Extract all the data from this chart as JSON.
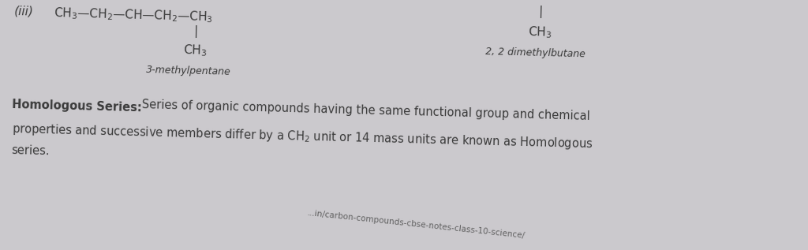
{
  "bg_color": "#cbc9cd",
  "text_color": "#3a3a3a",
  "fig_width": 10.24,
  "fig_height": 3.17,
  "dpi": 100,
  "iii_label": "(iii)",
  "name_left": "3-methylpentane",
  "name_right": "2, 2 dimethylbutane",
  "bold_text": "Homologous Series:",
  "line1": " Series of organic compounds having the same functional group and chemical",
  "line2": "properties and successive members differ by a CH$_2$ unit or 14 mass units are known as Homologous",
  "line3": "series.",
  "watermark": "...in/carbon-compounds-cbse-notes-class-10-science/"
}
